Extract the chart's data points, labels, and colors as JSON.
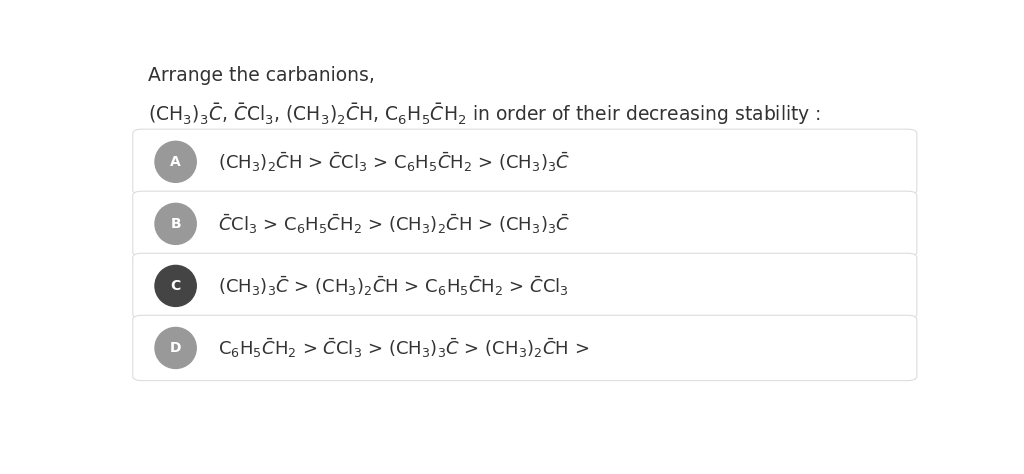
{
  "background_color": "#ffffff",
  "title_line1": "Arrange the carbanions,",
  "title_line2": "(CH$_3$)$_3$$\\bar{C}$, $\\bar{C}$Cl$_3$, (CH$_3$)$_2$$\\bar{C}$H, C$_6$H$_5$$\\bar{C}$H$_2$ in order of their decreasing stability :",
  "options": [
    {
      "label": "A",
      "text": "(CH$_3$)$_2$$\\bar{C}$H > $\\bar{C}$Cl$_3$ > C$_6$H$_5$$\\bar{C}$H$_2$ > (CH$_3$)$_3$$\\bar{C}$"
    },
    {
      "label": "B",
      "text": "$\\bar{C}$Cl$_3$ > C$_6$H$_5$$\\bar{C}$H$_2$ > (CH$_3$)$_2$$\\bar{C}$H > (CH$_3$)$_3$$\\bar{C}$"
    },
    {
      "label": "C",
      "text": "(CH$_3$)$_3$$\\bar{C}$ > (CH$_3$)$_2$$\\bar{C}$H > C$_6$H$_5$$\\bar{C}$H$_2$ > $\\bar{C}$Cl$_3$"
    },
    {
      "label": "D",
      "text": "C$_6$H$_5$$\\bar{C}$H$_2$ > $\\bar{C}$Cl$_3$ > (CH$_3$)$_3$$\\bar{C}$ > (CH$_3$)$_2$$\\bar{C}$H >"
    }
  ],
  "option_border_color": "#dddddd",
  "text_color": "#333333",
  "label_bg_colors": [
    "#999999",
    "#999999",
    "#444444",
    "#999999"
  ],
  "option_box_facecolor": "#ffffff",
  "title_color": "#333333"
}
